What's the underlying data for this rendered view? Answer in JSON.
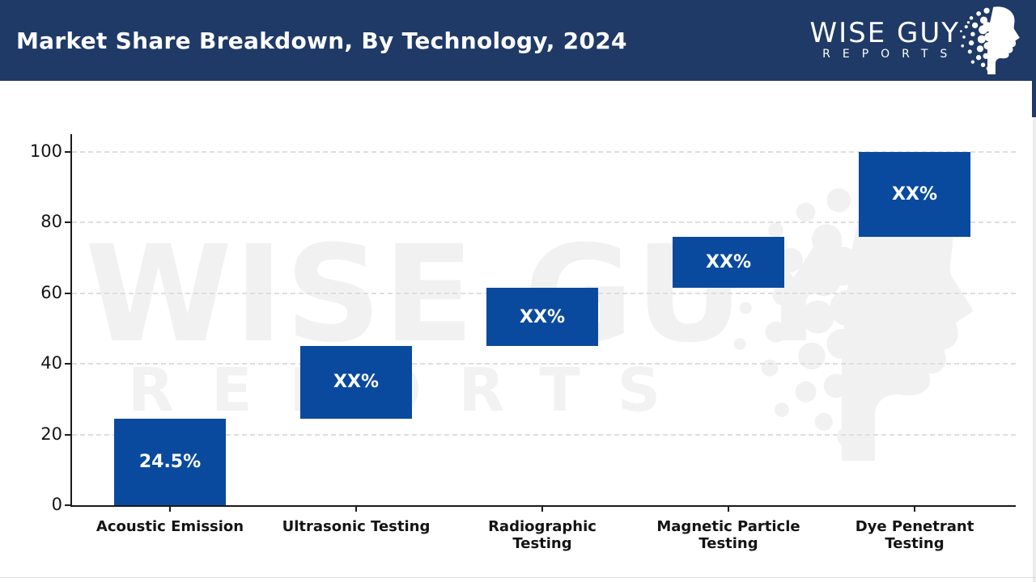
{
  "header": {
    "title": "Market Share Breakdown, By Technology, 2024",
    "bg_color": "#1f3a66",
    "logo": {
      "line1": "WISE GUY",
      "line2": "REPORTS"
    }
  },
  "watermark": {
    "line1": "WISE GUY",
    "line2": "REPORTS",
    "color": "#f1f1f1"
  },
  "chart_data": {
    "type": "bar",
    "variant": "waterfall",
    "title": "Market Share Breakdown, By Technology, 2024",
    "categories": [
      "Acoustic Emission",
      "Ultrasonic Testing",
      "Radiographic\nTesting",
      "Magnetic Particle\nTesting",
      "Dye Penetrant\nTesting"
    ],
    "segments": [
      {
        "category": "Acoustic Emission",
        "start": 0,
        "end": 24.5,
        "label": "24.5%"
      },
      {
        "category": "Ultrasonic Testing",
        "start": 24.5,
        "end": 45,
        "label": "XX%"
      },
      {
        "category": "Radiographic Testing",
        "start": 45,
        "end": 61.5,
        "label": "XX%"
      },
      {
        "category": "Magnetic Particle Testing",
        "start": 61.5,
        "end": 76,
        "label": "XX%"
      },
      {
        "category": "Dye Penetrant Testing",
        "start": 76,
        "end": 100,
        "label": "XX%"
      }
    ],
    "yticks": [
      0,
      20,
      40,
      60,
      80,
      100
    ],
    "ylim": [
      0,
      105
    ],
    "xlabel": "",
    "ylabel": "",
    "bar_color": "#0a4a9e",
    "value_label_color": "#ffffff",
    "grid": "horizontal-dashed",
    "legend": null
  }
}
